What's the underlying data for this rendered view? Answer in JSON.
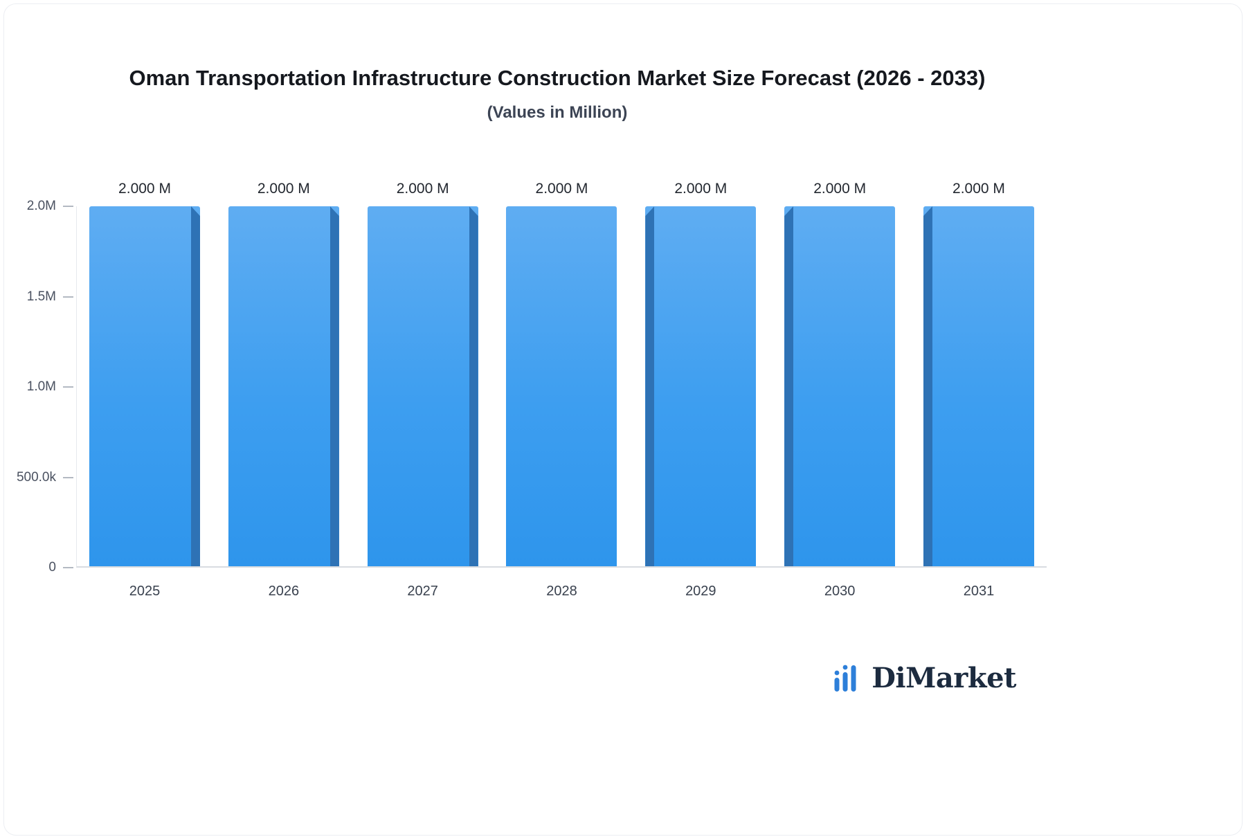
{
  "header": {
    "note": ""
  },
  "chart_data": {
    "type": "bar",
    "title": "Oman Transportation Infrastructure Construction Market Size Forecast (2026 - 2033)",
    "subtitle": "(Values in Million)",
    "categories": [
      "2025",
      "2026",
      "2027",
      "2028",
      "2029",
      "2030",
      "2031"
    ],
    "values": [
      2000000,
      2000000,
      2000000,
      2000000,
      2000000,
      2000000,
      2000000
    ],
    "value_labels": [
      "2.000 M",
      "2.000 M",
      "2.000 M",
      "2.000 M",
      "2.000 M",
      "2.000 M",
      "2.000 M"
    ],
    "xlabel": "",
    "ylabel": "",
    "ylim": [
      0,
      2000000
    ],
    "yticks": [
      {
        "label": "2.0M",
        "value": 2000000
      },
      {
        "label": "1.5M",
        "value": 1500000
      },
      {
        "label": "1.0M",
        "value": 1000000
      },
      {
        "label": "500.0k",
        "value": 500000
      },
      {
        "label": "0",
        "value": 0
      }
    ],
    "grid": false,
    "legend": false,
    "bar_color_top": "#5fadf2",
    "bar_color_bottom": "#2e95ec",
    "bar_edge_color": "#2e72b5"
  },
  "branding": {
    "logo_text": "DiMarket",
    "logo_icon": "bar-chart-logo-icon",
    "logo_icon_color": "#2d7fd9",
    "logo_text_color": "#1c2b3f"
  }
}
